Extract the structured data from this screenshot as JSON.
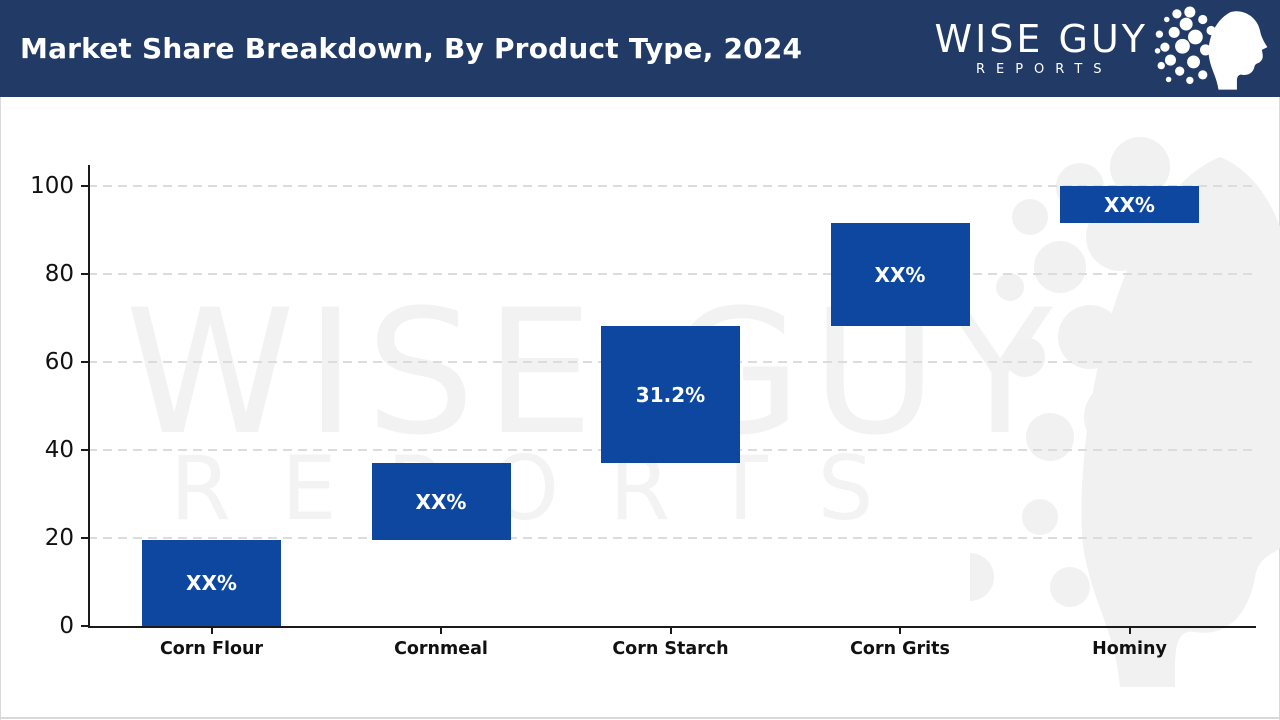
{
  "header": {
    "title": "Market Share Breakdown, By Product Type, 2024",
    "logo": {
      "line1": "WISE GUY",
      "line2": "REPORTS"
    }
  },
  "watermark": {
    "line1": "WISE GUY",
    "line2": "REPORTS"
  },
  "colors": {
    "header_bg": "#213a66",
    "bar": "#0d479f",
    "grid": "#dcdcdc",
    "axis": "#1a1a1a",
    "bar_label": "#ffffff",
    "watermark": "#f2f2f2"
  },
  "chart_data": {
    "type": "bar",
    "subtype": "waterfall",
    "title": "Market Share Breakdown, By Product Type, 2024",
    "categories": [
      "Corn Flour",
      "Cornmeal",
      "Corn Starch",
      "Corn Grits",
      "Hominy"
    ],
    "segments": [
      {
        "category": "Corn Flour",
        "start": 0,
        "end": 19.5,
        "label": "XX%"
      },
      {
        "category": "Cornmeal",
        "start": 19.5,
        "end": 37.0,
        "label": "XX%"
      },
      {
        "category": "Corn Starch",
        "start": 37.0,
        "end": 68.2,
        "label": "31.2%"
      },
      {
        "category": "Corn Grits",
        "start": 68.2,
        "end": 91.5,
        "label": "XX%"
      },
      {
        "category": "Hominy",
        "start": 91.5,
        "end": 100,
        "label": "XX%"
      }
    ],
    "y_ticks": [
      0,
      20,
      40,
      60,
      80,
      100
    ],
    "ylim": [
      0,
      100
    ],
    "xlabel": "",
    "ylabel": "",
    "grid": "dashed-horizontal",
    "legend": "none"
  }
}
